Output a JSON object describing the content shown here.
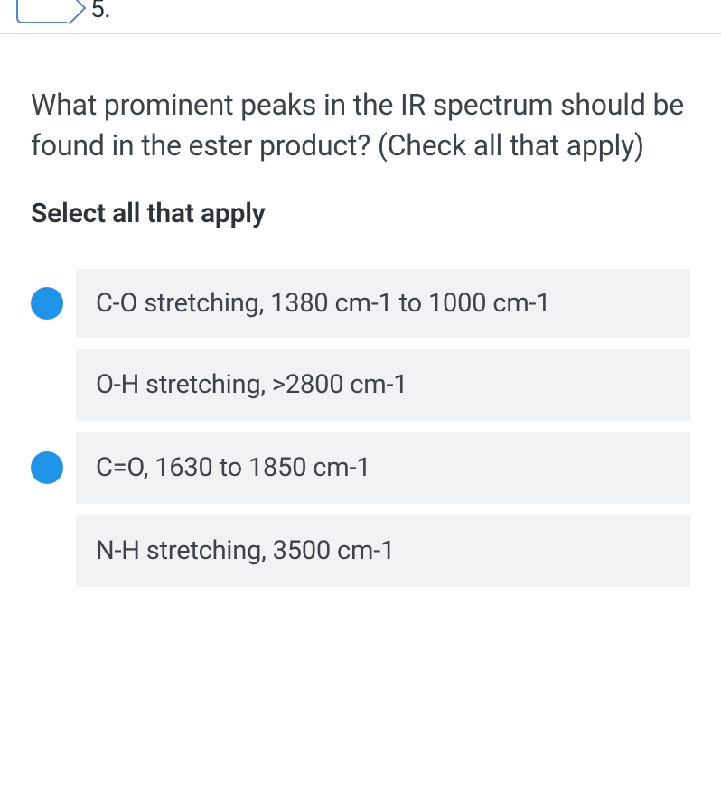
{
  "question": {
    "number": "5.",
    "prompt": "What prominent peaks in the IR spectrum should be found in the ester product? (Check all that apply)",
    "instruction": "Select all that apply"
  },
  "options": [
    {
      "label": "C-O stretching, 1380 cm-1 to 1000 cm-1",
      "selected": true
    },
    {
      "label": "O-H stretching, >2800 cm-1",
      "selected": false
    },
    {
      "label": "C=O, 1630 to 1850 cm-1",
      "selected": true
    },
    {
      "label": "N-H stretching, 3500 cm-1",
      "selected": false
    }
  ],
  "colors": {
    "marker": "#2094e9",
    "tab_border": "#4f87c7",
    "option_bg": "#f1f2f3",
    "text": "#3d4348",
    "divider": "#d9dbdd"
  }
}
